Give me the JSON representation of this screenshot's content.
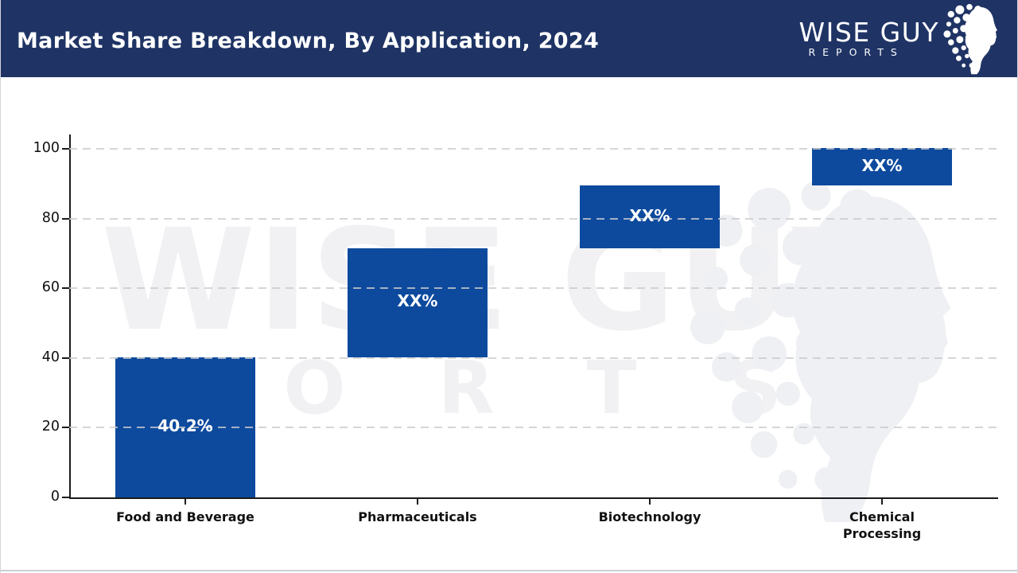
{
  "header": {
    "title": "Market Share Breakdown, By Application, 2024",
    "logo": {
      "wordmark": "WISE GUY",
      "subtitle": "REPORTS"
    }
  },
  "watermark": {
    "line1": "WISE GUY",
    "line2": "P O R T S"
  },
  "colors": {
    "header_bg": "#1f3465",
    "bar_blue": "#0d4a9e",
    "bar_label": "#ffffff",
    "gridline_gray": "#cbcbce",
    "axis_black": "#1a1a1a",
    "watermark_gray": "#f1f1f4"
  },
  "chart_data": {
    "type": "bar",
    "variant": "floating-segment-waterfall",
    "title": "Market Share Breakdown, By Application, 2024",
    "categories": [
      "Food and Beverage",
      "Pharmaceuticals",
      "Biotechnology",
      "Chemical\nProcessing"
    ],
    "segments": [
      {
        "start": 0,
        "end": 40.2,
        "label": "40.2%"
      },
      {
        "start": 40.2,
        "end": 71.5,
        "label": "XX%"
      },
      {
        "start": 71.5,
        "end": 89.4,
        "label": "XX%"
      },
      {
        "start": 89.4,
        "end": 100.2,
        "label": "XX%"
      }
    ],
    "xlabel": "",
    "ylabel": "",
    "ylim": [
      0,
      105
    ],
    "yticks": [
      0,
      20,
      40,
      60,
      80,
      100
    ],
    "grid": "horizontal-dashed",
    "legend": "none",
    "bar_color": "#0d4a9e",
    "bar_label_color": "#ffffff"
  }
}
